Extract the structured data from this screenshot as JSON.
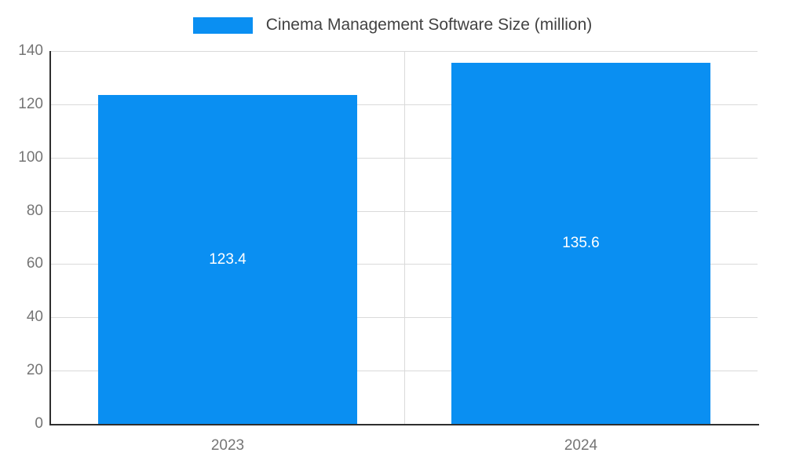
{
  "chart_data": {
    "type": "bar",
    "title": "Cinema Management Software Size (million)",
    "categories": [
      "2023",
      "2024"
    ],
    "values": [
      123.4,
      135.6
    ],
    "value_labels": [
      "123.4",
      "135.6"
    ],
    "ylim": [
      0,
      140
    ],
    "yticks": [
      0,
      20,
      40,
      60,
      80,
      100,
      120,
      140
    ],
    "grid": true,
    "legend_position": "top",
    "colors": {
      "bar": "#0a8ff2",
      "bar_value_text": "#ffffff",
      "grid": "#dadada",
      "axis": "#2f2f2f",
      "tick_text": "#757575",
      "title_text": "#424242"
    }
  }
}
